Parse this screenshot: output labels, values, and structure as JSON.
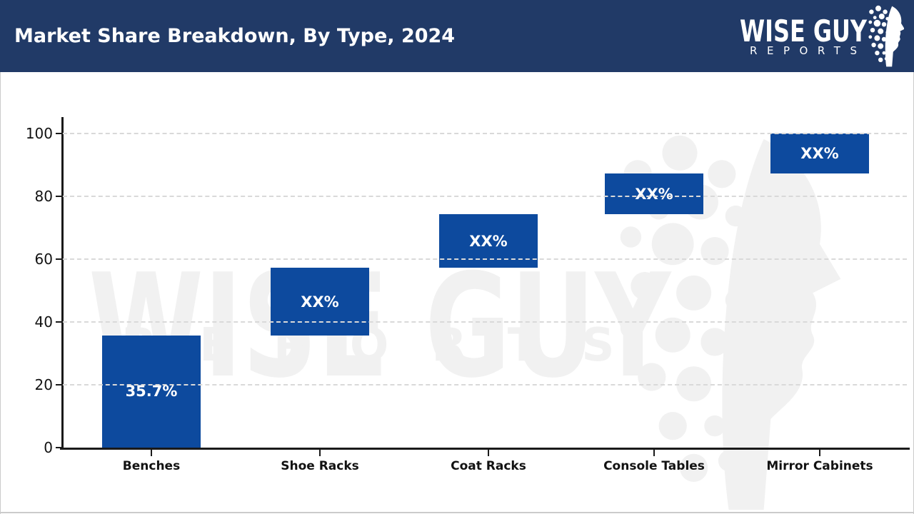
{
  "header": {
    "title": "Market Share Breakdown, By Type, 2024",
    "logo": {
      "line1": "WISE GUY",
      "line2": "REPORTS"
    }
  },
  "watermark": {
    "line1": "WISE GUY",
    "line2": "REPORTS"
  },
  "colors": {
    "header_bg": "#213a67",
    "bar": "#0d4a9e",
    "bar_label": "#ffffff",
    "axis": "#1a1a1a",
    "grid": "#d9d9d9",
    "tick_label": "#121212",
    "watermark": "#f1f1f1"
  },
  "chart_data": {
    "type": "bar",
    "variant": "waterfall",
    "title": "Market Share Breakdown, By Type, 2024",
    "categories": [
      "Benches",
      "Shoe Racks",
      "Coat Racks",
      "Console Tables",
      "Mirror Cabinets"
    ],
    "bars": [
      {
        "category": "Benches",
        "start": 0,
        "end": 35.7,
        "label": "35.7%"
      },
      {
        "category": "Shoe Racks",
        "start": 35.7,
        "end": 57.2,
        "label": "XX%"
      },
      {
        "category": "Coat Racks",
        "start": 57.2,
        "end": 74.3,
        "label": "XX%"
      },
      {
        "category": "Console Tables",
        "start": 74.3,
        "end": 87.2,
        "label": "XX%"
      },
      {
        "category": "Mirror Cabinets",
        "start": 87.2,
        "end": 100,
        "label": "XX%"
      }
    ],
    "xlabel": "",
    "ylabel": "",
    "ylim": [
      0,
      100
    ],
    "yticks": [
      0,
      20,
      40,
      60,
      80,
      100
    ],
    "grid": "horizontal-dashed",
    "legend": null
  }
}
